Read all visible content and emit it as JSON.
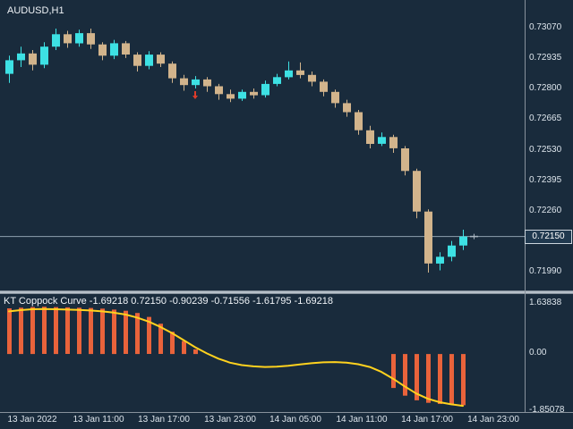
{
  "header": {
    "symbol": "AUDUSD,H1"
  },
  "colors": {
    "background": "#192b3c",
    "bull_candle": "#3de1e4",
    "bear_candle": "#d2b48c",
    "histogram": "#e9633b",
    "curve_line": "#ffd21e",
    "price_line": "#8fa0ae",
    "axis_text": "#dde5ec",
    "splitter": "#b6bfc8",
    "arrow": "#dd3b2a"
  },
  "time_axis": {
    "labels": [
      "13 Jan 2022",
      "13 Jan 11:00",
      "13 Jan 17:00",
      "13 Jan 23:00",
      "14 Jan 05:00",
      "14 Jan 11:00",
      "14 Jan 17:00",
      "14 Jan 23:00"
    ]
  },
  "chart_data": [
    {
      "type": "candlestick",
      "title": "AUDUSD,H1",
      "symbol": "AUDUSD",
      "timeframe": "H1",
      "ylim": [
        0.7199,
        0.7307
      ],
      "price_axis_labels": [
        "0.73070",
        "0.72935",
        "0.72800",
        "0.72665",
        "0.72530",
        "0.72395",
        "0.72260",
        "0.72125",
        "0.71990"
      ],
      "current_price": "0.72150",
      "sell_arrow_index": 16,
      "candles_ohlc": [
        [
          0.7287,
          0.7295,
          0.7283,
          0.7293
        ],
        [
          0.7293,
          0.7299,
          0.729,
          0.7296
        ],
        [
          0.7296,
          0.72975,
          0.72885,
          0.7291
        ],
        [
          0.7291,
          0.7301,
          0.72895,
          0.7299
        ],
        [
          0.7299,
          0.7307,
          0.72975,
          0.73045
        ],
        [
          0.73045,
          0.7306,
          0.72985,
          0.73005
        ],
        [
          0.73005,
          0.73065,
          0.7299,
          0.7305
        ],
        [
          0.7305,
          0.7307,
          0.7298,
          0.73
        ],
        [
          0.73,
          0.7301,
          0.7293,
          0.7295
        ],
        [
          0.7295,
          0.7302,
          0.72935,
          0.73005
        ],
        [
          0.73005,
          0.73015,
          0.7294,
          0.72955
        ],
        [
          0.72955,
          0.72965,
          0.7288,
          0.72905
        ],
        [
          0.72905,
          0.7297,
          0.7289,
          0.72955
        ],
        [
          0.72955,
          0.72965,
          0.729,
          0.72915
        ],
        [
          0.72915,
          0.72925,
          0.7283,
          0.7285
        ],
        [
          0.7285,
          0.72865,
          0.72795,
          0.7282
        ],
        [
          0.7282,
          0.7286,
          0.72805,
          0.72845
        ],
        [
          0.72845,
          0.72855,
          0.7279,
          0.72815
        ],
        [
          0.72815,
          0.72825,
          0.72755,
          0.7278
        ],
        [
          0.7278,
          0.728,
          0.72745,
          0.7276
        ],
        [
          0.7276,
          0.728,
          0.7275,
          0.7279
        ],
        [
          0.7279,
          0.72805,
          0.7276,
          0.72775
        ],
        [
          0.72775,
          0.7284,
          0.72765,
          0.72825
        ],
        [
          0.72825,
          0.7287,
          0.72815,
          0.72855
        ],
        [
          0.72855,
          0.72925,
          0.72845,
          0.72885
        ],
        [
          0.72885,
          0.7292,
          0.7285,
          0.72865
        ],
        [
          0.72865,
          0.7288,
          0.72815,
          0.72835
        ],
        [
          0.72835,
          0.72845,
          0.7277,
          0.7279
        ],
        [
          0.7279,
          0.728,
          0.7272,
          0.7274
        ],
        [
          0.7274,
          0.72755,
          0.7268,
          0.727
        ],
        [
          0.727,
          0.7271,
          0.726,
          0.7262
        ],
        [
          0.7262,
          0.7264,
          0.7254,
          0.7256
        ],
        [
          0.7256,
          0.7261,
          0.7255,
          0.7259
        ],
        [
          0.7259,
          0.726,
          0.7252,
          0.7254
        ],
        [
          0.7254,
          0.7255,
          0.7242,
          0.7244
        ],
        [
          0.7244,
          0.7245,
          0.7223,
          0.7226
        ],
        [
          0.7226,
          0.7227,
          0.7199,
          0.7203
        ],
        [
          0.7203,
          0.7208,
          0.72,
          0.7206
        ],
        [
          0.7206,
          0.7213,
          0.7204,
          0.7211
        ],
        [
          0.7211,
          0.7218,
          0.7209,
          0.7215
        ]
      ]
    },
    {
      "type": "bar",
      "name": "KT Coppock Curve",
      "values_display": [
        "-1.69218",
        "0.72150",
        "-0.90239",
        "-0.71556",
        "-1.61795",
        "-1.69218"
      ],
      "axis_labels": [
        "1.63838",
        "0.00",
        "-1.85078"
      ],
      "ylim": [
        -1.85078,
        1.63838
      ],
      "legend_position": "top-left",
      "histogram": [
        1.48,
        1.5,
        1.52,
        1.53,
        1.52,
        1.51,
        1.5,
        1.49,
        1.47,
        1.44,
        1.4,
        1.33,
        1.2,
        0.98,
        0.72,
        0.42,
        0.15,
        0,
        0,
        0,
        0,
        0,
        0,
        0,
        0,
        0,
        0,
        0,
        0,
        0,
        0,
        0,
        0,
        -1.1,
        -1.35,
        -1.5,
        -1.58,
        -1.62,
        -1.64,
        -1.66
      ],
      "curve": [
        1.38,
        1.42,
        1.45,
        1.46,
        1.45,
        1.44,
        1.43,
        1.41,
        1.38,
        1.34,
        1.28,
        1.18,
        1.05,
        0.88,
        0.68,
        0.45,
        0.22,
        0.02,
        -0.15,
        -0.28,
        -0.36,
        -0.4,
        -0.42,
        -0.41,
        -0.38,
        -0.34,
        -0.3,
        -0.27,
        -0.26,
        -0.28,
        -0.33,
        -0.42,
        -0.58,
        -0.8,
        -1.05,
        -1.28,
        -1.45,
        -1.56,
        -1.63,
        -1.68
      ]
    }
  ]
}
